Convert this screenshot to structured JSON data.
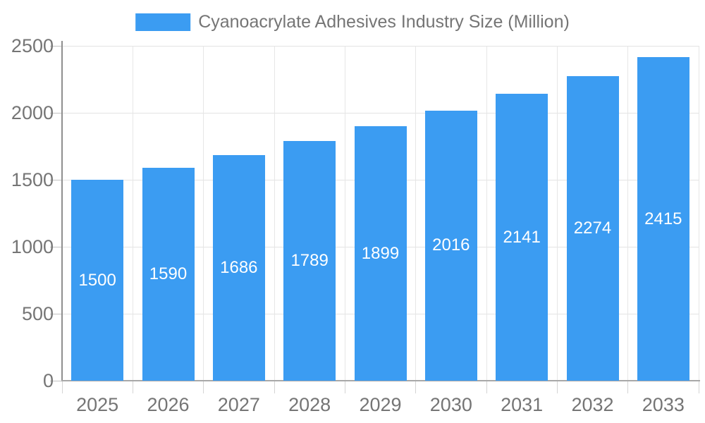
{
  "legend": {
    "label": "Cyanoacrylate Adhesives Industry Size (Million)"
  },
  "chart_data": {
    "type": "bar",
    "title": "Cyanoacrylate Adhesives Industry Size (Million)",
    "series_name": "Cyanoacrylate Adhesives Industry Size (Million)",
    "categories": [
      "2025",
      "2026",
      "2027",
      "2028",
      "2029",
      "2030",
      "2031",
      "2032",
      "2033"
    ],
    "values": [
      1500,
      1590,
      1686,
      1789,
      1899,
      2016,
      2141,
      2274,
      2415
    ],
    "xlabel": "",
    "ylabel": "",
    "ylim": [
      0,
      2500
    ],
    "yticks": [
      0,
      500,
      1000,
      1500,
      2000,
      2500
    ],
    "grid": true,
    "legend_position": "top-center",
    "bar_color": "#3B9CF2",
    "value_label_color": "#FFFFFF",
    "axis_label_color": "#757575",
    "background_color": "#FFFFFF"
  }
}
